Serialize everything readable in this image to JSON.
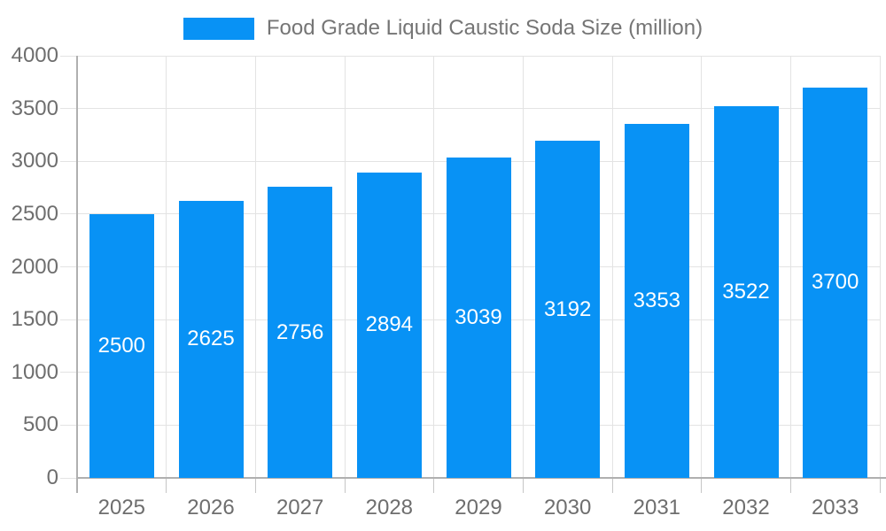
{
  "chart_data": {
    "type": "bar",
    "title": "Food Grade Liquid Caustic Soda Size (million)",
    "categories": [
      "2025",
      "2026",
      "2027",
      "2028",
      "2029",
      "2030",
      "2031",
      "2032",
      "2033"
    ],
    "values": [
      2500,
      2625,
      2756,
      2894,
      3039,
      3192,
      3353,
      3522,
      3700
    ],
    "bar_value_labels": [
      "2500",
      "2625",
      "2756",
      "2894",
      "3039",
      "3192",
      "3353",
      "3522",
      "3700"
    ],
    "xlabel": "",
    "ylabel": "",
    "ylim": [
      0,
      4000
    ],
    "yticks": [
      0,
      500,
      1000,
      1500,
      2000,
      2500,
      3000,
      3500,
      4000
    ],
    "grid": true,
    "legend_position": "top-center",
    "colors": {
      "bar": "#0892f5",
      "grid": "#e3e3e3",
      "axis": "#b0b0b0",
      "axis_tick": "#c6c6c6",
      "tick_label": "#6e6e6e",
      "legend_label": "#757575",
      "bar_label": "#ffffff",
      "background": "#ffffff"
    }
  }
}
